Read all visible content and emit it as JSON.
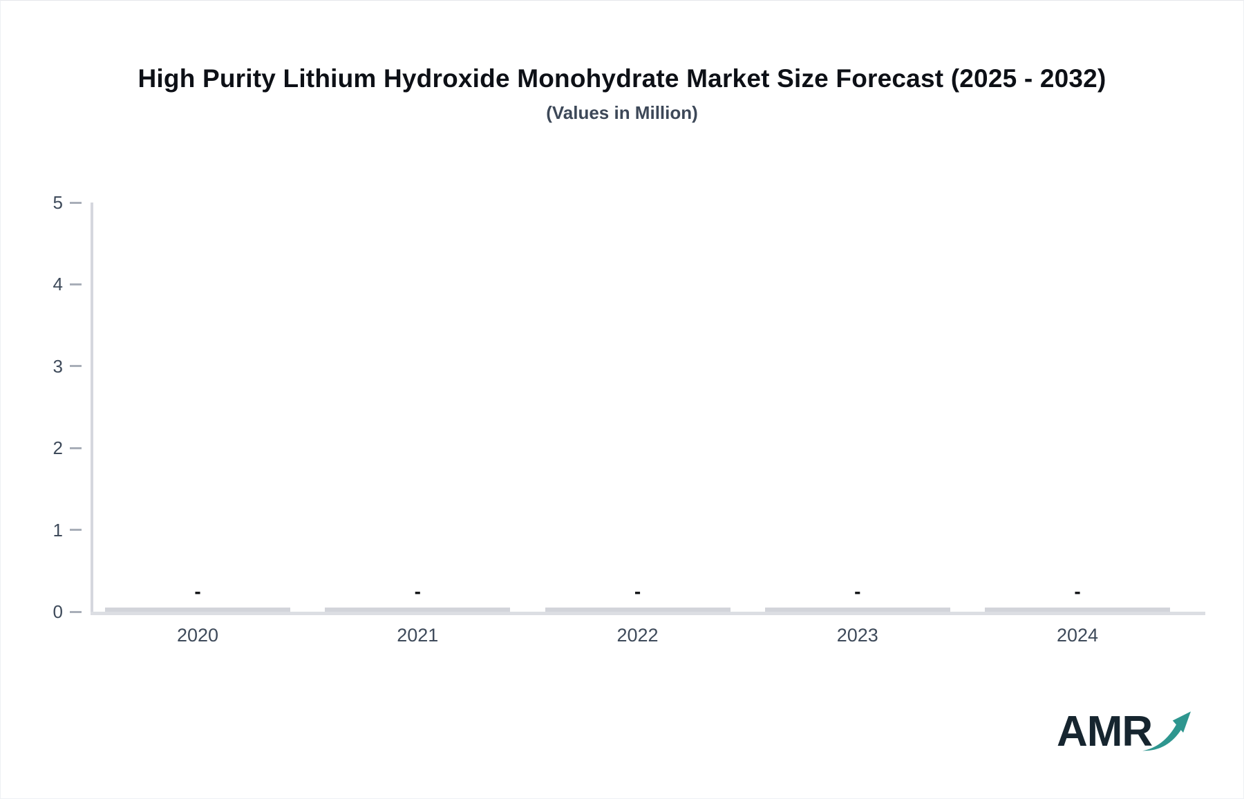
{
  "chart": {
    "title": "High Purity Lithium Hydroxide Monohydrate Market Size Forecast (2025 - 2032)",
    "subtitle": "(Values in Million)"
  },
  "chart_data": {
    "type": "bar",
    "title": "High Purity Lithium Hydroxide Monohydrate Market Size Forecast (2025 - 2032)",
    "subtitle": "(Values in Million)",
    "categories": [
      "2020",
      "2021",
      "2022",
      "2023",
      "2024"
    ],
    "values": [
      null,
      null,
      null,
      null,
      null
    ],
    "value_labels": [
      "-",
      "-",
      "-",
      "-",
      "-"
    ],
    "xlabel": "",
    "ylabel": "",
    "ylim": [
      0,
      5
    ],
    "yticks": [
      0,
      1,
      2,
      3,
      4,
      5
    ],
    "grid": false,
    "legend": false,
    "bar_color": "#d2d4da",
    "axis_line_color": "#d5d7de",
    "baseline_color": "#dcdee3",
    "tick_color": "#a8aeb8",
    "axis_label_color": "#3e4a5a",
    "value_label_color": "#0b0d10"
  },
  "footer": {
    "logo_text": "AMR",
    "logo_text_color": "#16252f",
    "logo_arrow_color": "#2e968f"
  }
}
